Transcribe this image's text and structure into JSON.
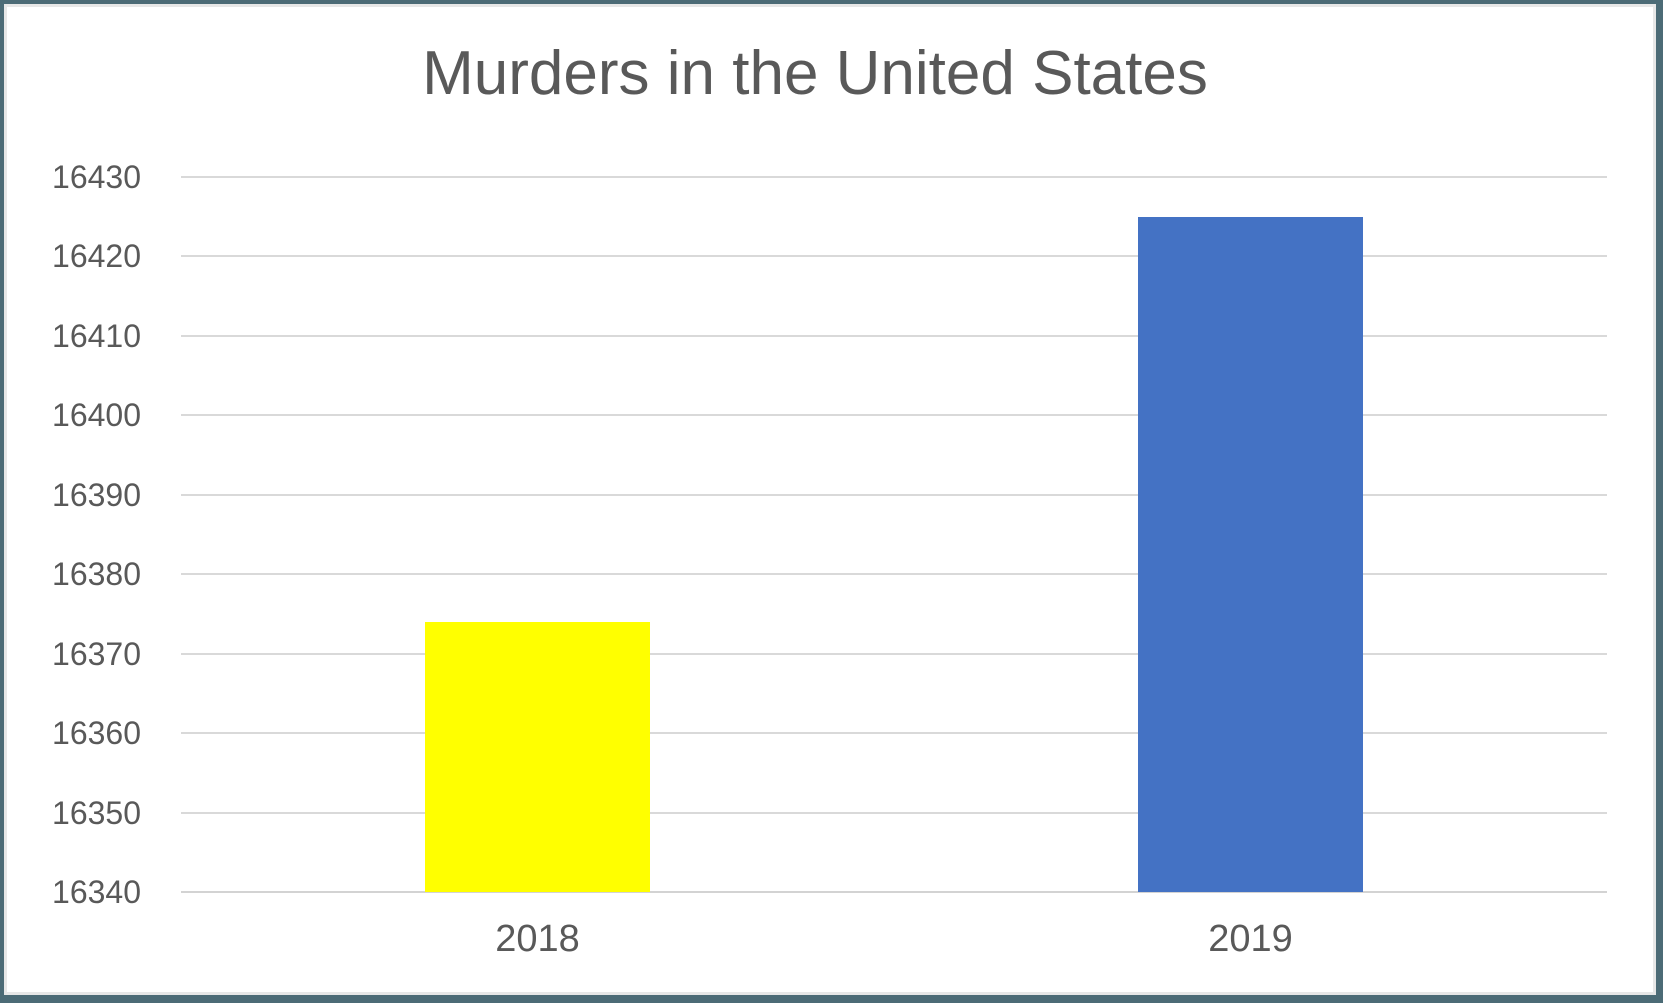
{
  "chart_data": {
    "type": "bar",
    "title": "Murders in the United States",
    "categories": [
      "2018",
      "2019"
    ],
    "values": [
      16374,
      16425
    ],
    "bar_colors": [
      "#FFFF00",
      "#4472C4"
    ],
    "xlabel": "",
    "ylabel": "",
    "ylim": [
      16340,
      16430
    ],
    "ytick_step": 10,
    "ytick_labels": [
      "16430",
      "16420",
      "16410",
      "16400",
      "16390",
      "16380",
      "16370",
      "16360",
      "16350",
      "16340"
    ],
    "grid": true,
    "legend": "none"
  },
  "colors": {
    "text": "#595959",
    "gridline": "#D9D9D9",
    "axis_line": "#D3D3D3",
    "frame_border": "#4C6B76",
    "background": "#FFFFFF"
  }
}
